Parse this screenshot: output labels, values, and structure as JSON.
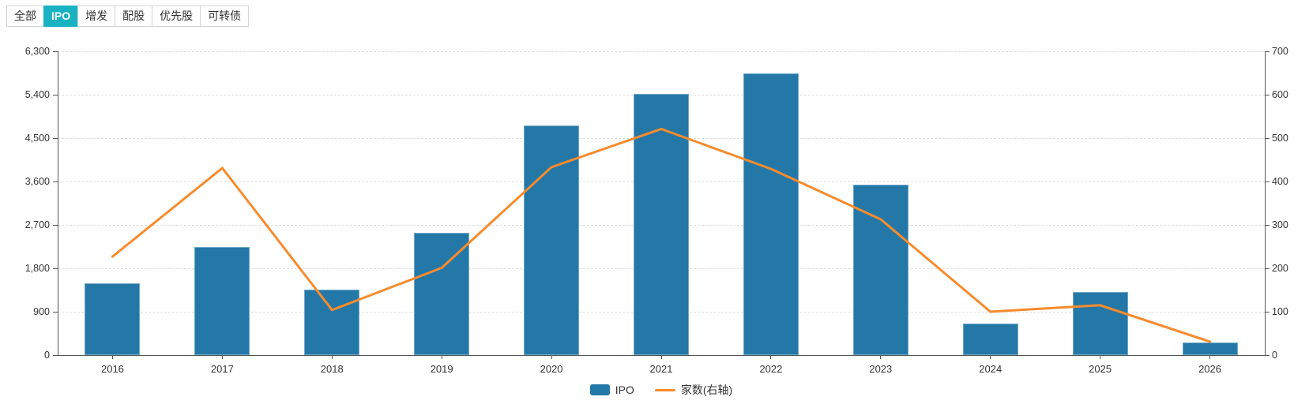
{
  "tabs": {
    "items": [
      {
        "label": "全部",
        "active": false
      },
      {
        "label": "IPO",
        "active": true
      },
      {
        "label": "增发",
        "active": false
      },
      {
        "label": "配股",
        "active": false
      },
      {
        "label": "优先股",
        "active": false
      },
      {
        "label": "可转债",
        "active": false
      }
    ]
  },
  "legend": {
    "bar_label": "IPO",
    "line_label": "家数(右轴)"
  },
  "colors": {
    "bar": "#2478a8",
    "line": "#f78b2d",
    "tab_active_bg": "#19b2c2",
    "grid": "#dddddd",
    "axis": "#555555",
    "text": "#333333"
  },
  "chart_data": {
    "type": "bar",
    "categories": [
      "2016",
      "2017",
      "2018",
      "2019",
      "2020",
      "2021",
      "2022",
      "2023",
      "2024",
      "2025",
      "2026"
    ],
    "series": [
      {
        "name": "IPO",
        "type": "bar",
        "axis": "left",
        "values": [
          1490,
          2250,
          1360,
          2530,
          4770,
          5410,
          5850,
          3540,
          660,
          1310,
          265
        ]
      },
      {
        "name": "家数(右轴)",
        "type": "line",
        "axis": "right",
        "values": [
          227,
          431,
          104,
          201,
          433,
          521,
          429,
          313,
          100,
          115,
          31
        ]
      }
    ],
    "left_axis": {
      "min": 0,
      "max": 6300,
      "step": 900,
      "tick_labels": [
        "0",
        "900",
        "1,800",
        "2,700",
        "3,600",
        "4,500",
        "5,400",
        "6,300"
      ]
    },
    "right_axis": {
      "min": 0,
      "max": 700,
      "step": 100,
      "tick_labels": [
        "0",
        "100",
        "200",
        "300",
        "400",
        "500",
        "600",
        "700"
      ]
    },
    "title": "",
    "grid": "horizontal-dashed",
    "legend_position": "bottom-center"
  }
}
